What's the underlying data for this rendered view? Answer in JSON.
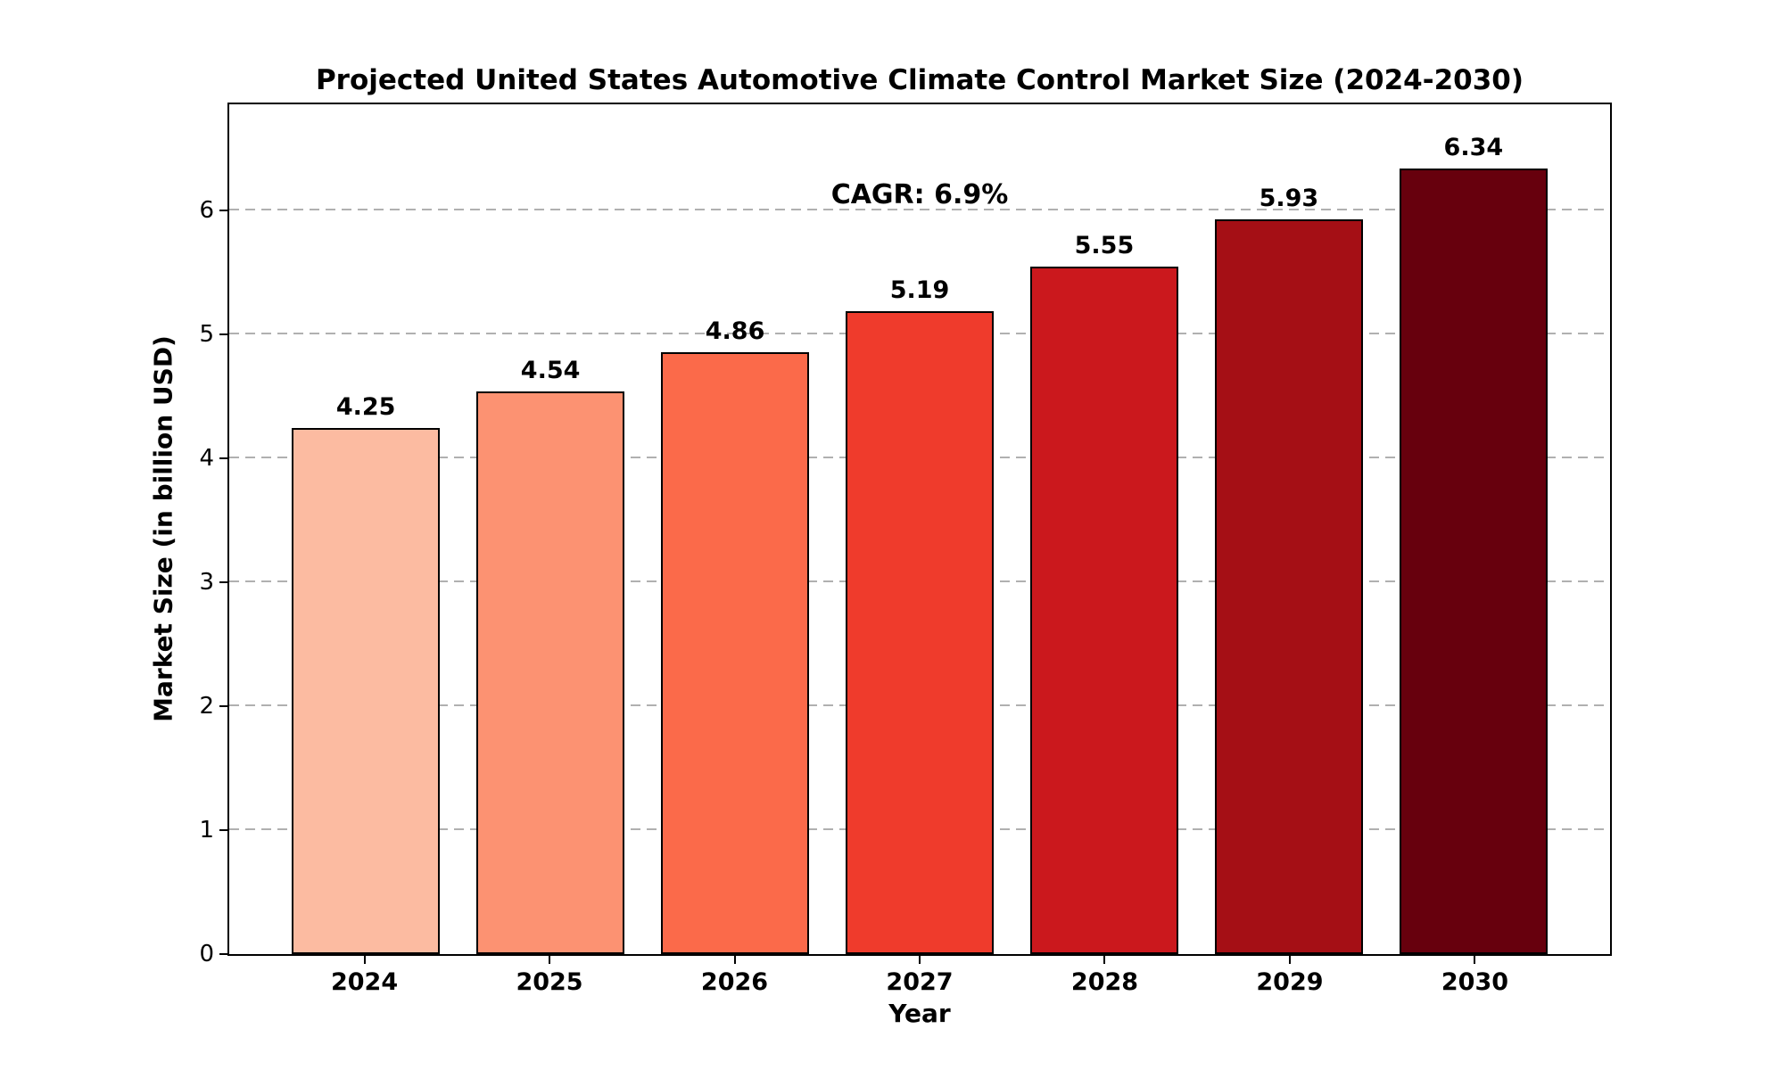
{
  "page": {
    "background": "#ffffff"
  },
  "chart_data": {
    "type": "bar",
    "title": "Projected United States Automotive Climate Control Market Size (2024-2030)",
    "xlabel": "Year",
    "ylabel": "Market Size (in billion USD)",
    "categories": [
      "2024",
      "2025",
      "2026",
      "2027",
      "2028",
      "2029",
      "2030"
    ],
    "values": [
      4.25,
      4.54,
      4.86,
      5.19,
      5.55,
      5.93,
      6.34
    ],
    "value_labels": [
      "4.25",
      "4.54",
      "4.86",
      "5.19",
      "5.55",
      "5.93",
      "6.34"
    ],
    "bar_colors": [
      "#fcbba1",
      "#fc9272",
      "#fb6a4a",
      "#ef3b2c",
      "#cb181d",
      "#a50f15",
      "#67000d"
    ],
    "bar_edge_color": "#000000",
    "bar_width": 0.8,
    "yticks": [
      0,
      1,
      2,
      3,
      4,
      5,
      6
    ],
    "ylim": [
      0,
      6.86
    ],
    "xlim": [
      -0.74,
      6.74
    ],
    "grid": {
      "axis": "y",
      "style": "dashed",
      "color": "#b0b0b0"
    },
    "annotation": {
      "text": "CAGR: 6.9%"
    },
    "legend": null
  }
}
